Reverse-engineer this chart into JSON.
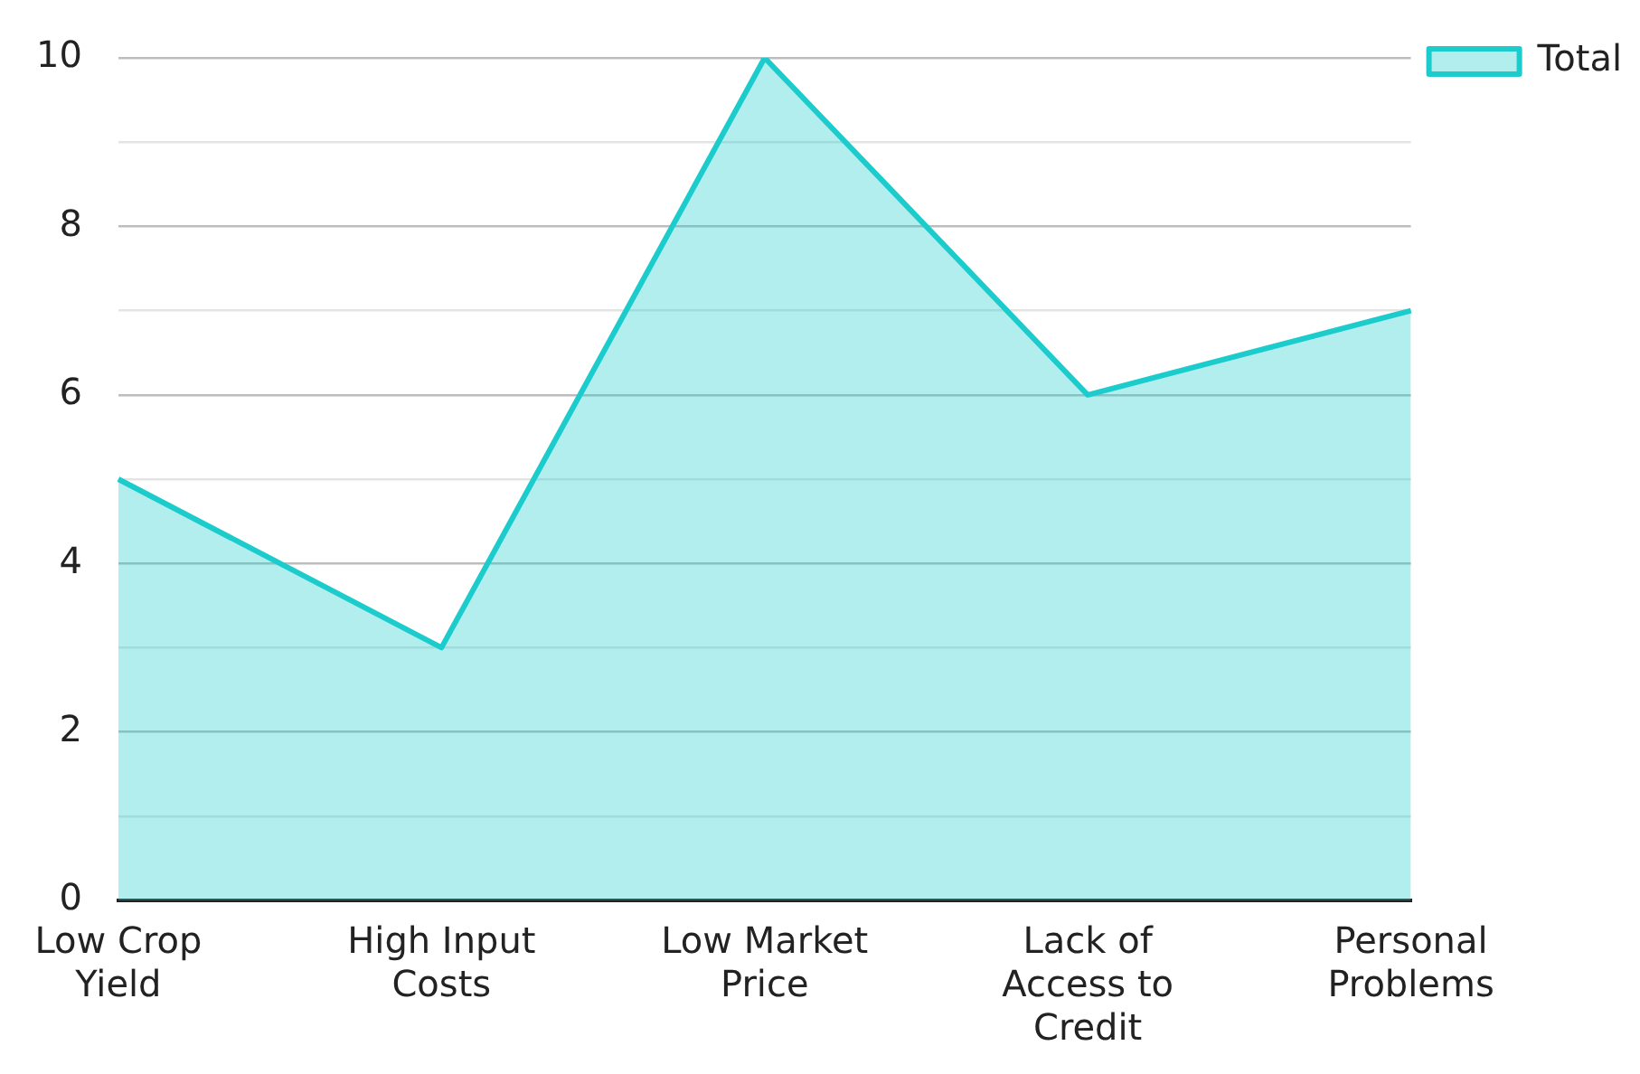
{
  "chart_data": {
    "type": "area",
    "categories": [
      "Low Crop Yield",
      "High Input Costs",
      "Low Market Price",
      "Lack of Access to Credit",
      "Personal Problems"
    ],
    "series": [
      {
        "name": "Total",
        "color": "#1ccccc",
        "values": [
          5,
          3,
          10,
          6,
          7
        ]
      }
    ],
    "ylim": [
      0,
      10
    ],
    "yticks": [
      0,
      {
        "value": 1,
        "label": null
      },
      2,
      {
        "value": 3,
        "label": null
      },
      4,
      {
        "value": 5,
        "label": null
      },
      6,
      {
        "value": 7,
        "label": null
      },
      8,
      {
        "value": 9,
        "label": null
      },
      10
    ],
    "grid": "y",
    "legend": "top right",
    "line_style": "solid",
    "marker": "none"
  }
}
